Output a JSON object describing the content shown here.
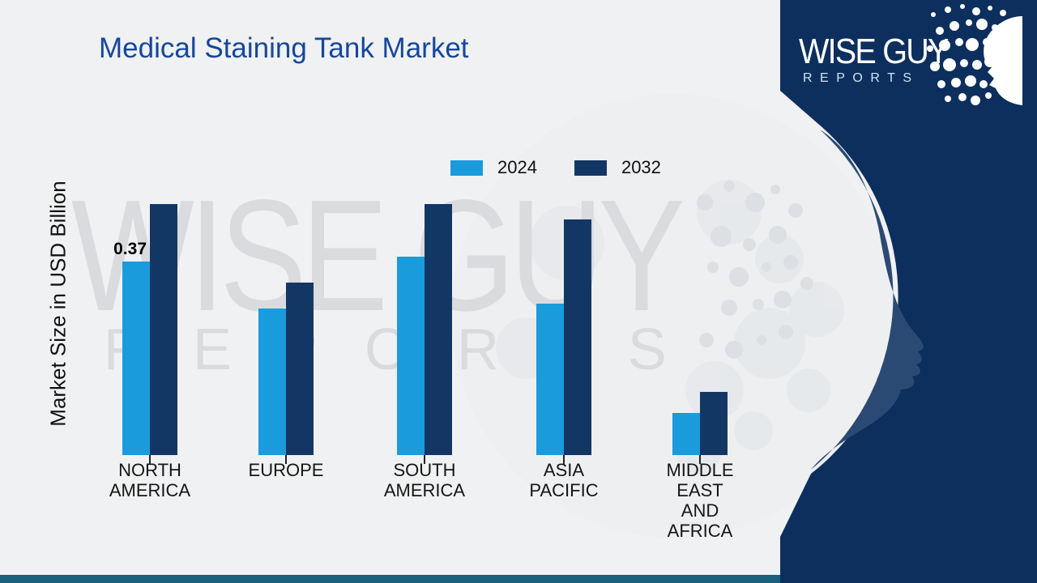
{
  "page": {
    "background": "#f0f1f2"
  },
  "header": {
    "title": "Medical Staining Tank Market",
    "title_color": "#15479d"
  },
  "watermark": {
    "line1": "WISE GUY",
    "line2": "REPORTS"
  },
  "brand": {
    "logo_line1": "WISE GUY",
    "logo_line2": "REPORTS",
    "panel_color": "#0d2f5e",
    "bottom_bar_color": "#1a5f7c"
  },
  "chart_data": {
    "type": "bar",
    "title": "Medical Staining Tank Market",
    "xlabel": "",
    "ylabel": "Market Size in USD Billion",
    "categories": [
      "NORTH\nAMERICA",
      "EUROPE",
      "SOUTH\nAMERICA",
      "ASIA\nPACIFIC",
      "MIDDLE\nEAST\nAND\nAFRICA"
    ],
    "series": [
      {
        "name": "2024",
        "color": "#1a9bdc",
        "values": [
          0.37,
          0.28,
          0.38,
          0.29,
          0.08
        ]
      },
      {
        "name": "2032",
        "color": "#133764",
        "values": [
          0.48,
          0.33,
          0.48,
          0.45,
          0.12
        ]
      }
    ],
    "ylim": [
      0,
      0.55
    ],
    "grid": false,
    "legend_position": "top",
    "bar_labels": [
      {
        "series": "2024",
        "category_index": 0,
        "text": "0.37"
      }
    ]
  }
}
